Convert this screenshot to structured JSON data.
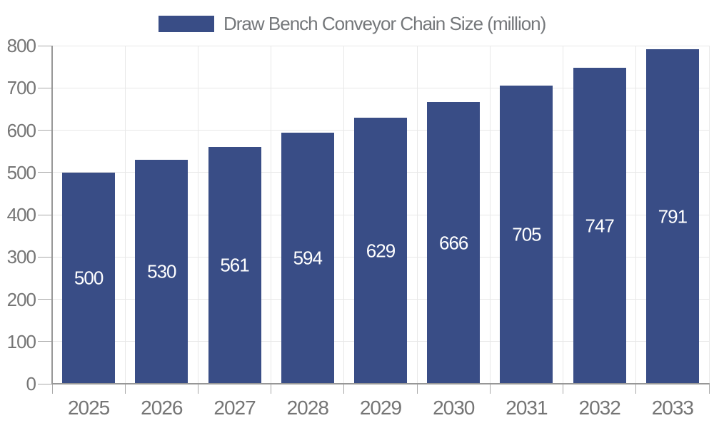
{
  "legend": {
    "label": "Draw Bench Conveyor Chain Size (million)",
    "swatch_color": "#394D86",
    "text_color": "#75787B"
  },
  "chart_data": {
    "type": "bar",
    "title": "Draw Bench Conveyor Chain Size (million)",
    "categories": [
      "2025",
      "2026",
      "2027",
      "2028",
      "2029",
      "2030",
      "2031",
      "2032",
      "2033"
    ],
    "values": [
      500,
      530,
      561,
      594,
      629,
      666,
      705,
      747,
      791
    ],
    "xlabel": "",
    "ylabel": "",
    "ylim": [
      0,
      800
    ],
    "yticks": [
      0,
      100,
      200,
      300,
      400,
      500,
      600,
      700,
      800
    ],
    "grid": true,
    "legend_position": "top",
    "value_labels": "inside-center",
    "colors": {
      "bar": "#394D86",
      "bar_label": "#FFFFFF",
      "axis": "#979797",
      "tick": "#A8A8A8",
      "gridline": "#E8E8E8",
      "tick_label": "#757575",
      "background": "#FFFFFF"
    }
  }
}
